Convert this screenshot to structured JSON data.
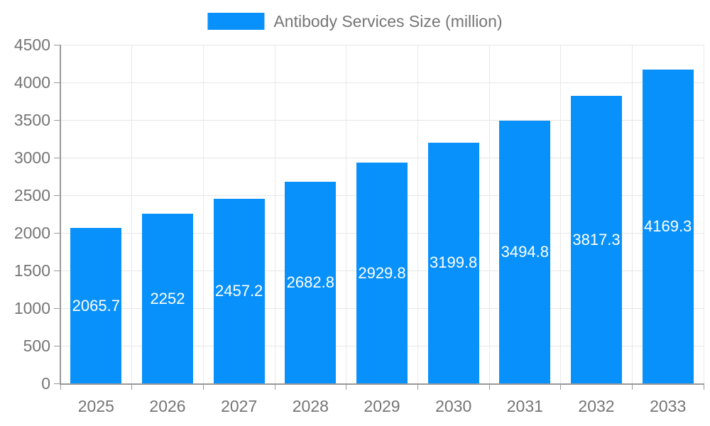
{
  "chart_data": {
    "type": "bar",
    "legend_label": "Antibody Services Size (million)",
    "categories": [
      "2025",
      "2026",
      "2027",
      "2028",
      "2029",
      "2030",
      "2031",
      "2032",
      "2033"
    ],
    "series": [
      {
        "name": "Antibody Services Size (million)",
        "values": [
          2065.7,
          2252,
          2457.2,
          2682.8,
          2929.8,
          3199.8,
          3494.8,
          3817.3,
          4169.3
        ],
        "value_labels": [
          "2065.7",
          "2252",
          "2457.2",
          "2682.8",
          "2929.8",
          "3199.8",
          "3494.8",
          "3817.3",
          "4169.3"
        ]
      }
    ],
    "xlabel": "",
    "ylabel": "",
    "ylim": [
      0,
      4500
    ],
    "ytick_step": 500,
    "ytick_labels": [
      "0",
      "500",
      "1000",
      "1500",
      "2000",
      "2500",
      "3000",
      "3500",
      "4000",
      "4500"
    ],
    "grid": true,
    "legend_position": "top",
    "colors": {
      "bar": "#0991fb",
      "value_label": "#ffffff",
      "axis_line": "#999999",
      "grid_line_h": "#e6e6e6",
      "grid_line_v": "#e9e9e9",
      "tick_label": "#757575",
      "legend_text": "#757575",
      "background": "#ffffff"
    }
  }
}
